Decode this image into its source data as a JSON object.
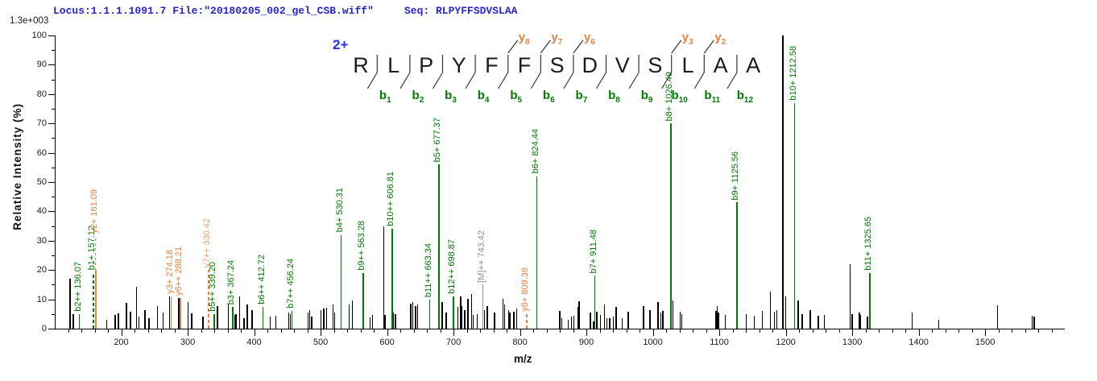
{
  "header": {
    "locus_file": "Locus:1.1.1.1091.7 File:\"20180205_002_gel_CSB.wiff\"",
    "seq": "Seq: RLPYFFSDVSLAA",
    "base_peak_intensity": "1.3e+003"
  },
  "colors": {
    "header_blue": "#2424cc",
    "charge_blue": "#1f31e8",
    "b_ion_green": "#007b00",
    "y_ion_orange": "#e8813f",
    "precursor_gray": "#8f8f8f",
    "peak_black": "#000000"
  },
  "chart_data": {
    "type": "bar",
    "kind": "MS/MS fragmentation spectrum",
    "xlabel": "m/z",
    "ylabel": "Relative  Intensity (%)",
    "xlim": [
      100,
      1615
    ],
    "ylim": [
      0,
      100
    ],
    "x_major_ticks": [
      200,
      300,
      400,
      500,
      600,
      700,
      800,
      900,
      1000,
      1100,
      1200,
      1300,
      1400,
      1500
    ],
    "x_minor_step": 20,
    "y_major_ticks": [
      0,
      10,
      20,
      30,
      40,
      50,
      60,
      70,
      80,
      90,
      100
    ],
    "y_minor_step": 5,
    "precursor_charge": "2+",
    "sequence_ladder": {
      "residues": [
        "R",
        "L",
        "P",
        "Y",
        "F",
        "F",
        "S",
        "D",
        "V",
        "S",
        "L",
        "A",
        "A"
      ],
      "b_ions": [
        1,
        2,
        3,
        4,
        5,
        6,
        7,
        8,
        9,
        10,
        11,
        12
      ],
      "y_ions": [
        {
          "num": 8,
          "gap": 5
        },
        {
          "num": 7,
          "gap": 6
        },
        {
          "num": 6,
          "gap": 7
        },
        {
          "num": 3,
          "gap": 10
        },
        {
          "num": 2,
          "gap": 11
        }
      ]
    },
    "labeled_peaks": [
      {
        "mz": 136.07,
        "intensity": 5,
        "label": "b2++ 136.07",
        "series": "b"
      },
      {
        "mz": 157.12,
        "intensity": 19,
        "label": "b1+ 157.12",
        "series": "b",
        "dashed": true
      },
      {
        "mz": 161.09,
        "intensity": 20,
        "label": "y2+ 161.09",
        "series": "y",
        "raise": 42
      },
      {
        "mz": 274.18,
        "intensity": 11,
        "label": "y3+ 274.18",
        "series": "y"
      },
      {
        "mz": 288.21,
        "intensity": 10.4,
        "label": "y6++ 288.21",
        "series": "y"
      },
      {
        "mz": 330.42,
        "intensity": 20,
        "label": "y7++ 330.42",
        "series": "y",
        "dashed": true,
        "faint": true
      },
      {
        "mz": 339.2,
        "intensity": 5,
        "label": "b5++ 339.20",
        "series": "b"
      },
      {
        "mz": 367.24,
        "intensity": 7.4,
        "label": "b3+ 367.24",
        "series": "b"
      },
      {
        "mz": 412.72,
        "intensity": 7.5,
        "label": "b6++ 412.72",
        "series": "b"
      },
      {
        "mz": 456.24,
        "intensity": 6,
        "label": "b7++ 456.24",
        "series": "b"
      },
      {
        "mz": 530.31,
        "intensity": 32,
        "label": "b4+ 530.31",
        "series": "b"
      },
      {
        "mz": 563.28,
        "intensity": 19,
        "label": "b9++ 563.28",
        "series": "b"
      },
      {
        "mz": 606.81,
        "intensity": 34,
        "label": "b10++ 606.81",
        "series": "b"
      },
      {
        "mz": 663.34,
        "intensity": 10,
        "label": "b11++ 663.34",
        "series": "b"
      },
      {
        "mz": 677.37,
        "intensity": 56,
        "label": "b5+ 677.37",
        "series": "b"
      },
      {
        "mz": 698.87,
        "intensity": 11,
        "label": "b12++ 698.87",
        "series": "b"
      },
      {
        "mz": 743.42,
        "intensity": 15,
        "label": "[M]++ 743.42",
        "series": "M"
      },
      {
        "mz": 809.38,
        "intensity": 5,
        "label": "y8+ 809.38",
        "series": "y",
        "dashed": true
      },
      {
        "mz": 824.44,
        "intensity": 52,
        "label": "b6+ 824.44",
        "series": "b"
      },
      {
        "mz": 911.48,
        "intensity": 18,
        "label": "b7+ 911.48",
        "series": "b"
      },
      {
        "mz": 1026.49,
        "intensity": 70,
        "label": "b8+ 1026.49",
        "series": "b"
      },
      {
        "mz": 1125.56,
        "intensity": 43,
        "label": "b9+ 1125.56",
        "series": "b"
      },
      {
        "mz": 1212.58,
        "intensity": 77,
        "label": "b10+ 1212.58",
        "series": "b"
      },
      {
        "mz": 1325.65,
        "intensity": 19,
        "label": "b11+ 1325.65",
        "series": "b"
      }
    ],
    "background_peaks": [
      [
        122,
        17
      ],
      [
        127,
        5
      ],
      [
        177,
        3
      ],
      [
        190,
        4.7
      ],
      [
        195,
        5.2
      ],
      [
        207,
        8.8
      ],
      [
        213,
        5.8
      ],
      [
        222,
        14.3
      ],
      [
        226,
        4
      ],
      [
        235,
        6.3
      ],
      [
        241,
        3.6
      ],
      [
        254,
        7.7
      ],
      [
        262,
        5.5
      ],
      [
        272,
        11
      ],
      [
        286,
        10.4
      ],
      [
        300,
        9
      ],
      [
        305,
        5.2
      ],
      [
        322,
        4
      ],
      [
        344,
        7.7
      ],
      [
        360,
        8.2
      ],
      [
        370,
        4.7
      ],
      [
        372,
        5
      ],
      [
        377,
        11
      ],
      [
        384,
        3.6
      ],
      [
        389,
        8.2
      ],
      [
        396,
        6.3
      ],
      [
        423,
        4
      ],
      [
        432,
        4.5
      ],
      [
        451,
        5.5
      ],
      [
        454,
        5
      ],
      [
        480,
        5.5
      ],
      [
        483,
        6.3
      ],
      [
        486,
        4
      ],
      [
        500,
        6.3
      ],
      [
        504,
        7
      ],
      [
        508,
        7.1
      ],
      [
        518,
        8.2
      ],
      [
        520,
        5.5
      ],
      [
        542,
        8.2
      ],
      [
        547,
        9.6
      ],
      [
        574,
        3.8
      ],
      [
        577,
        4.7
      ],
      [
        594,
        35
      ],
      [
        596,
        4.7
      ],
      [
        609,
        5.5
      ],
      [
        612,
        5
      ],
      [
        635,
        8.5
      ],
      [
        638,
        9
      ],
      [
        642,
        7.7
      ],
      [
        645,
        8.2
      ],
      [
        678,
        5
      ],
      [
        682,
        9
      ],
      [
        688,
        5.5
      ],
      [
        706,
        7.4
      ],
      [
        710,
        11
      ],
      [
        712,
        7.7
      ],
      [
        716,
        6.3
      ],
      [
        721,
        10.2
      ],
      [
        726,
        11.8
      ],
      [
        729,
        4.7
      ],
      [
        735,
        5
      ],
      [
        746,
        6.3
      ],
      [
        750,
        7.7
      ],
      [
        761,
        5.5
      ],
      [
        774,
        10.2
      ],
      [
        776,
        8.2
      ],
      [
        782,
        6.3
      ],
      [
        784,
        5.5
      ],
      [
        790,
        5.7
      ],
      [
        794,
        6.8
      ],
      [
        859,
        6
      ],
      [
        862,
        3.5
      ],
      [
        872,
        3
      ],
      [
        877,
        4
      ],
      [
        880,
        4.5
      ],
      [
        886,
        7.5
      ],
      [
        888,
        9.3
      ],
      [
        905,
        5.5
      ],
      [
        910,
        2.5
      ],
      [
        915,
        5.7
      ],
      [
        920,
        4.6
      ],
      [
        926,
        8.2
      ],
      [
        930,
        3.5
      ],
      [
        934,
        3.5
      ],
      [
        940,
        4
      ],
      [
        944,
        7.4
      ],
      [
        953,
        3.5
      ],
      [
        962,
        5.7
      ],
      [
        985,
        7.7
      ],
      [
        995,
        6.3
      ],
      [
        1007,
        9
      ],
      [
        1011,
        5.5
      ],
      [
        1014,
        6
      ],
      [
        1029,
        9.6
      ],
      [
        1040,
        5.7
      ],
      [
        1043,
        5
      ],
      [
        1094,
        6
      ],
      [
        1096,
        7.7
      ],
      [
        1098,
        5.5
      ],
      [
        1108,
        4.7
      ],
      [
        1140,
        5
      ],
      [
        1152,
        4.4
      ],
      [
        1164,
        6
      ],
      [
        1176,
        12.6
      ],
      [
        1182,
        5.7
      ],
      [
        1186,
        6.3
      ],
      [
        1195,
        100
      ],
      [
        1199,
        11
      ],
      [
        1218,
        9.5
      ],
      [
        1224,
        5
      ],
      [
        1236,
        6.3
      ],
      [
        1248,
        4.4
      ],
      [
        1257,
        4.7
      ],
      [
        1296,
        22
      ],
      [
        1299,
        5
      ],
      [
        1310,
        5.5
      ],
      [
        1312,
        4.7
      ],
      [
        1322,
        4
      ],
      [
        1389,
        5.5
      ],
      [
        1429,
        3
      ],
      [
        1518,
        8
      ],
      [
        1570,
        4.5
      ],
      [
        1573,
        4
      ]
    ]
  }
}
